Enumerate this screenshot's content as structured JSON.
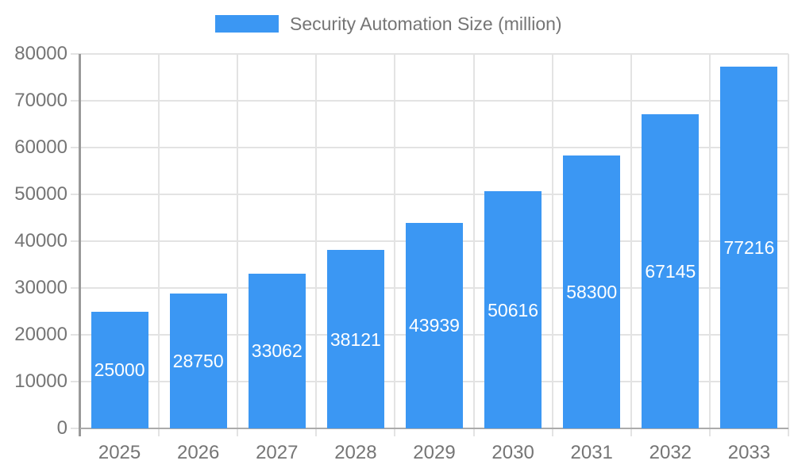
{
  "legend": {
    "label": "Security Automation Size (million)",
    "position": "top"
  },
  "colors": {
    "bar": "#3B97F3",
    "bar_label_text": "#FFFFFF",
    "axis_text": "#757575",
    "gridline": "#E3E3E3",
    "x_axis_line": "#ABABAB",
    "y_axis_line": "#999999",
    "background": "#FFFFFF"
  },
  "chart_data": {
    "type": "bar",
    "title": "Security Automation Size (million)",
    "series_name": "Security Automation Size (million)",
    "categories": [
      "2025",
      "2026",
      "2027",
      "2028",
      "2029",
      "2030",
      "2031",
      "2032",
      "2033"
    ],
    "values": [
      25000,
      28750,
      33062,
      38121,
      43939,
      50616,
      58300,
      67145,
      77216
    ],
    "xlabel": "",
    "ylabel": "",
    "ylim": [
      0,
      80000
    ],
    "ytick_step": 10000,
    "ytick_labels": [
      "0",
      "10000",
      "20000",
      "30000",
      "40000",
      "50000",
      "60000",
      "70000",
      "80000"
    ],
    "grid": true,
    "legend_position": "top",
    "value_labels": "inside-center-white"
  }
}
